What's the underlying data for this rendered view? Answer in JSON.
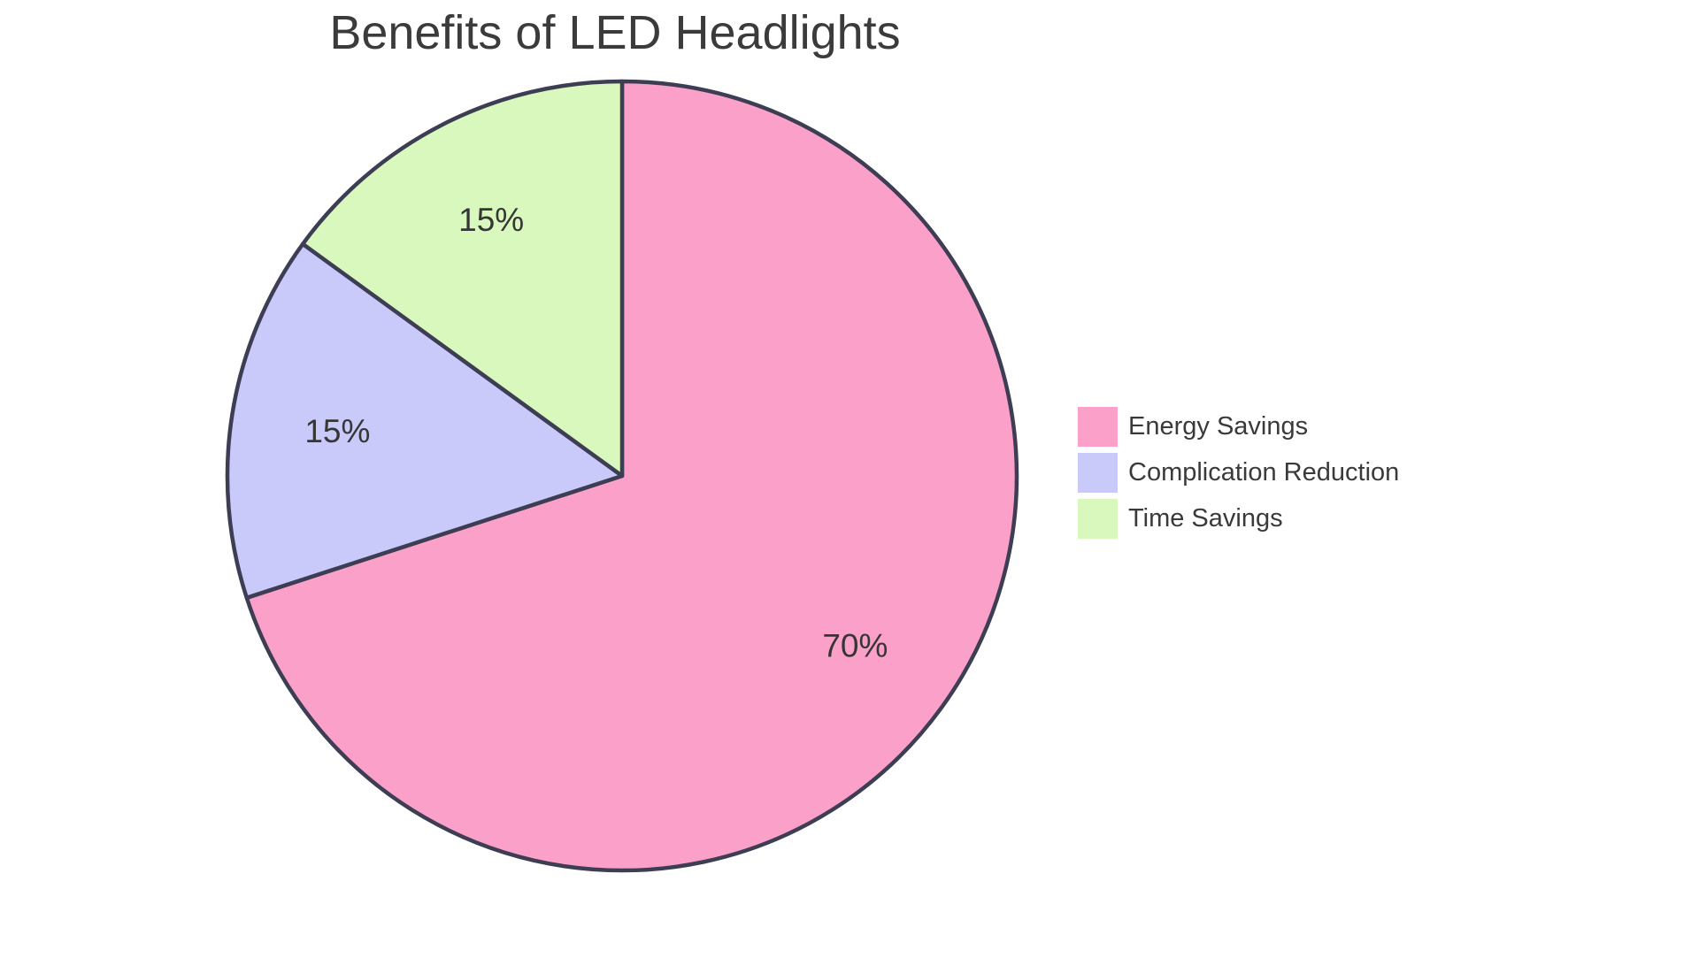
{
  "chart_data": {
    "type": "pie",
    "title": "Benefits of LED Headlights",
    "labels": [
      "Energy Savings",
      "Complication Reduction",
      "Time Savings"
    ],
    "values": [
      70,
      15,
      15
    ],
    "percent_labels": [
      "70%",
      "15%",
      "15%"
    ],
    "colors": [
      "#FBA1C9",
      "#C9C9FA",
      "#D9F8BD"
    ],
    "slice_border_color": "#3D3D54",
    "label_color": "#363636",
    "title_color": "#3B3B3B",
    "background_color": "#FFFFFF",
    "start_angle_deg": 0,
    "direction": "clockwise",
    "legend_position": "right",
    "legend_items": [
      "Energy Savings",
      "Complication Reduction",
      "Time Savings"
    ]
  }
}
